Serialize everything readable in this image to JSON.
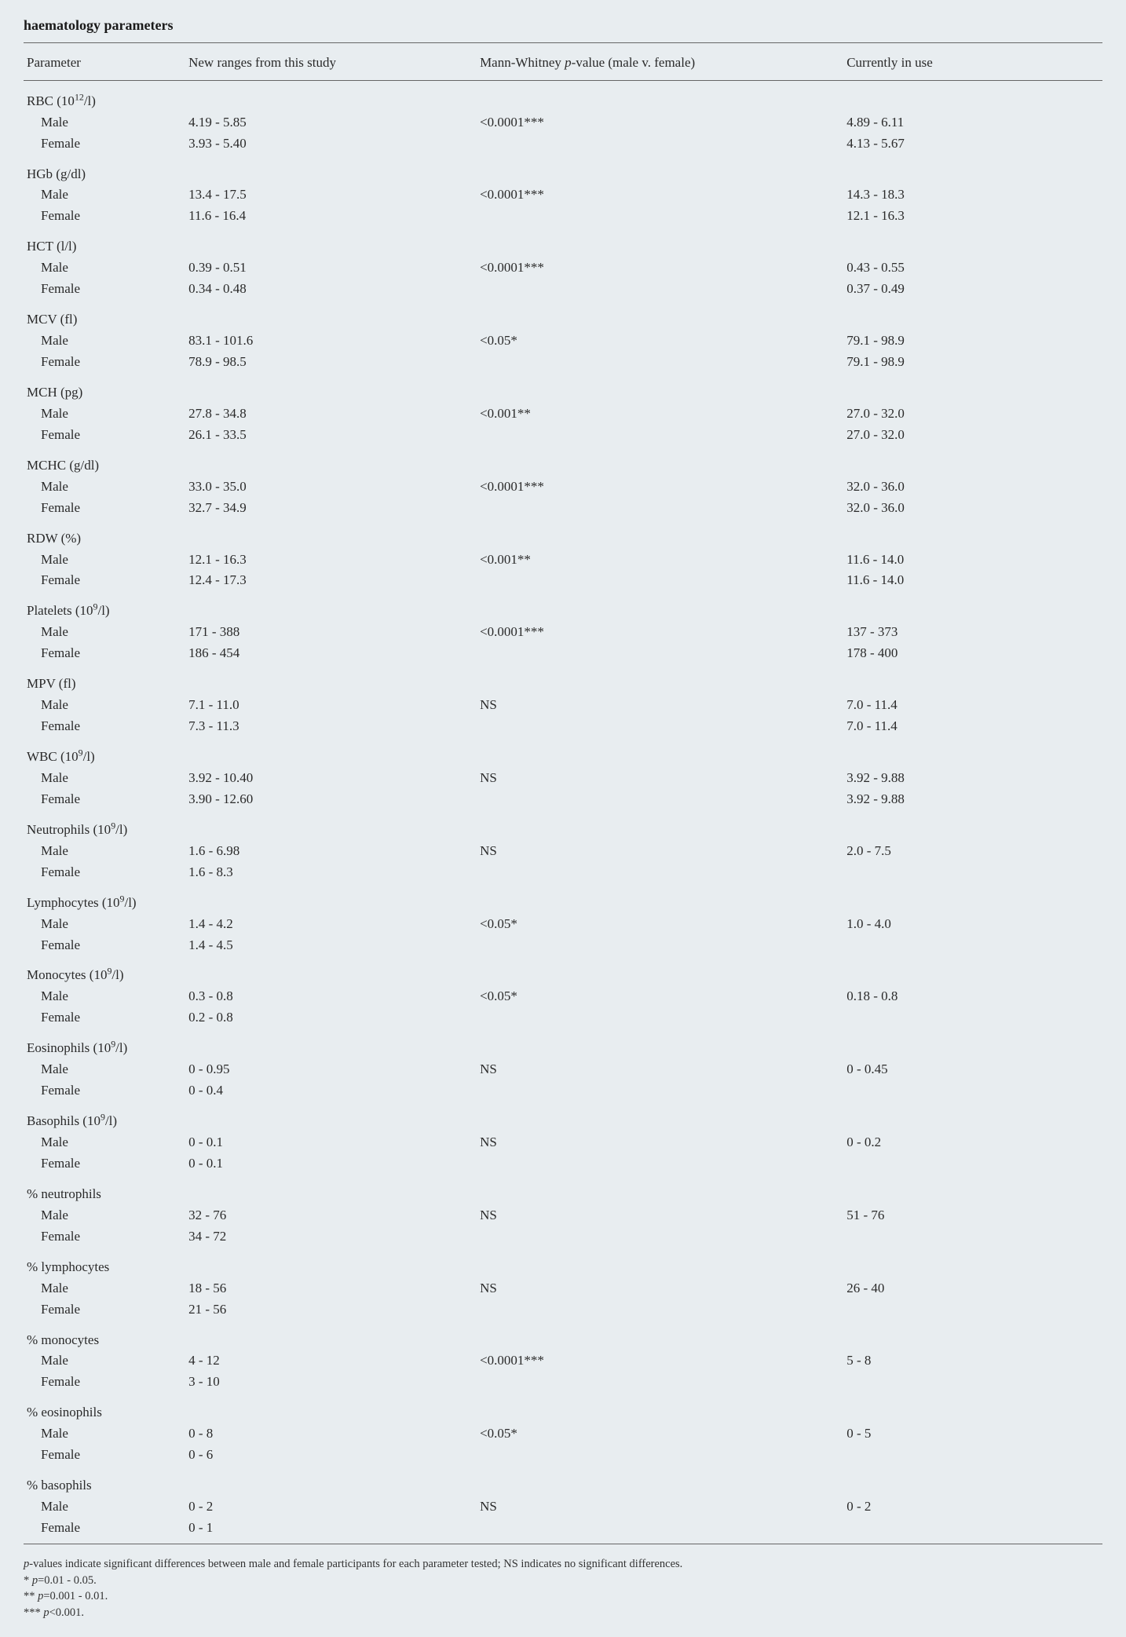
{
  "title": "haematology parameters",
  "columns": {
    "param": "Parameter",
    "new": "New ranges from this study",
    "mann": "Mann-Whitney <span class=\"italic\">p</span>-value (male v. female)",
    "curr": "Currently in use"
  },
  "parameters": [
    {
      "label": "RBC (10¹²/l)",
      "rows": [
        {
          "gender": "Male",
          "new": "4.19 - 5.85",
          "mann": "<0.0001***",
          "curr": "4.89 - 6.11"
        },
        {
          "gender": "Female",
          "new": "3.93 - 5.40",
          "mann": "",
          "curr": "4.13 - 5.67"
        }
      ]
    },
    {
      "label": "HGb (g/dl)",
      "rows": [
        {
          "gender": "Male",
          "new": "13.4 - 17.5",
          "mann": "<0.0001***",
          "curr": "14.3 - 18.3"
        },
        {
          "gender": "Female",
          "new": "11.6 - 16.4",
          "mann": "",
          "curr": "12.1 - 16.3"
        }
      ]
    },
    {
      "label": "HCT (l/l)",
      "rows": [
        {
          "gender": "Male",
          "new": "0.39 - 0.51",
          "mann": "<0.0001***",
          "curr": "0.43 - 0.55"
        },
        {
          "gender": "Female",
          "new": "0.34 - 0.48",
          "mann": "",
          "curr": "0.37 - 0.49"
        }
      ]
    },
    {
      "label": "MCV (fl)",
      "rows": [
        {
          "gender": "Male",
          "new": "83.1 - 101.6",
          "mann": "<0.05*",
          "curr": "79.1 - 98.9"
        },
        {
          "gender": "Female",
          "new": "78.9 - 98.5",
          "mann": "",
          "curr": "79.1 - 98.9"
        }
      ]
    },
    {
      "label": "MCH (pg)",
      "rows": [
        {
          "gender": "Male",
          "new": "27.8 - 34.8",
          "mann": "<0.001**",
          "curr": "27.0 - 32.0"
        },
        {
          "gender": "Female",
          "new": "26.1 - 33.5",
          "mann": "",
          "curr": "27.0 - 32.0"
        }
      ]
    },
    {
      "label": "MCHC (g/dl)",
      "rows": [
        {
          "gender": "Male",
          "new": "33.0 - 35.0",
          "mann": "<0.0001***",
          "curr": "32.0 - 36.0"
        },
        {
          "gender": "Female",
          "new": "32.7 - 34.9",
          "mann": "",
          "curr": "32.0 - 36.0"
        }
      ]
    },
    {
      "label": "RDW (%)",
      "rows": [
        {
          "gender": "Male",
          "new": "12.1 - 16.3",
          "mann": "<0.001**",
          "curr": "11.6 - 14.0"
        },
        {
          "gender": "Female",
          "new": "12.4 - 17.3",
          "mann": "",
          "curr": "11.6 - 14.0"
        }
      ]
    },
    {
      "label": "Platelets (10⁹/l)",
      "rows": [
        {
          "gender": "Male",
          "new": "171 - 388",
          "mann": "<0.0001***",
          "curr": "137 - 373"
        },
        {
          "gender": "Female",
          "new": "186 - 454",
          "mann": "",
          "curr": "178 - 400"
        }
      ]
    },
    {
      "label": "MPV (fl)",
      "rows": [
        {
          "gender": "Male",
          "new": "7.1 - 11.0",
          "mann": "NS",
          "curr": "7.0 - 11.4"
        },
        {
          "gender": "Female",
          "new": "7.3 - 11.3",
          "mann": "",
          "curr": "7.0 - 11.4"
        }
      ]
    },
    {
      "label": "WBC (10⁹/l)",
      "rows": [
        {
          "gender": "Male",
          "new": "3.92 - 10.40",
          "mann": "NS",
          "curr": "3.92 - 9.88"
        },
        {
          "gender": "Female",
          "new": "3.90 - 12.60",
          "mann": "",
          "curr": "3.92 - 9.88"
        }
      ]
    },
    {
      "label": "Neutrophils (10⁹/l)",
      "rows": [
        {
          "gender": "Male",
          "new": "1.6 - 6.98",
          "mann": "NS",
          "curr": "2.0 - 7.5"
        },
        {
          "gender": "Female",
          "new": "1.6 - 8.3",
          "mann": "",
          "curr": ""
        }
      ]
    },
    {
      "label": "Lymphocytes (10⁹/l)",
      "rows": [
        {
          "gender": "Male",
          "new": "1.4 - 4.2",
          "mann": "<0.05*",
          "curr": "1.0 - 4.0"
        },
        {
          "gender": "Female",
          "new": "1.4 - 4.5",
          "mann": "",
          "curr": ""
        }
      ]
    },
    {
      "label": "Monocytes (10⁹/l)",
      "rows": [
        {
          "gender": "Male",
          "new": "0.3 - 0.8",
          "mann": "<0.05*",
          "curr": "0.18 - 0.8"
        },
        {
          "gender": "Female",
          "new": "0.2 - 0.8",
          "mann": "",
          "curr": ""
        }
      ]
    },
    {
      "label": "Eosinophils (10⁹/l)",
      "rows": [
        {
          "gender": "Male",
          "new": "0 - 0.95",
          "mann": "NS",
          "curr": "0 - 0.45"
        },
        {
          "gender": "Female",
          "new": "0 - 0.4",
          "mann": "",
          "curr": ""
        }
      ]
    },
    {
      "label": "Basophils (10⁹/l)",
      "rows": [
        {
          "gender": "Male",
          "new": "0 - 0.1",
          "mann": "NS",
          "curr": "0 - 0.2"
        },
        {
          "gender": "Female",
          "new": "0 - 0.1",
          "mann": "",
          "curr": ""
        }
      ]
    },
    {
      "label": "% neutrophils",
      "rows": [
        {
          "gender": "Male",
          "new": "32 - 76",
          "mann": "NS",
          "curr": "51 - 76"
        },
        {
          "gender": "Female",
          "new": "34 - 72",
          "mann": "",
          "curr": ""
        }
      ]
    },
    {
      "label": "% lymphocytes",
      "rows": [
        {
          "gender": "Male",
          "new": "18 - 56",
          "mann": " NS",
          "curr": "26 - 40"
        },
        {
          "gender": "Female",
          "new": "21 - 56",
          "mann": "",
          "curr": ""
        }
      ]
    },
    {
      "label": "% monocytes",
      "rows": [
        {
          "gender": "Male",
          "new": "4 - 12",
          "mann": "<0.0001***",
          "curr": "5 - 8"
        },
        {
          "gender": "Female",
          "new": "3 - 10",
          "mann": "",
          "curr": ""
        }
      ]
    },
    {
      "label": "% eosinophils",
      "rows": [
        {
          "gender": "Male",
          "new": "0 - 8",
          "mann": "<0.05*",
          "curr": "0 - 5"
        },
        {
          "gender": "Female",
          "new": "0 - 6",
          "mann": "",
          "curr": ""
        }
      ]
    },
    {
      "label": "% basophils",
      "rows": [
        {
          "gender": "Male",
          "new": "0 - 2",
          "mann": "NS",
          "curr": "0 - 2"
        },
        {
          "gender": "Female",
          "new": "0 - 1",
          "mann": "",
          "curr": ""
        }
      ]
    }
  ],
  "footnotes": [
    "<span class=\"italic\">p</span>-values indicate significant differences between male and female participants for each parameter tested; NS indicates no significant differences.",
    "* <span class=\"italic\">p</span>=0.01 - 0.05.",
    "** <span class=\"italic\">p</span>=0.001 - 0.01.",
    "*** <span class=\"italic\">p</span><0.001."
  ]
}
